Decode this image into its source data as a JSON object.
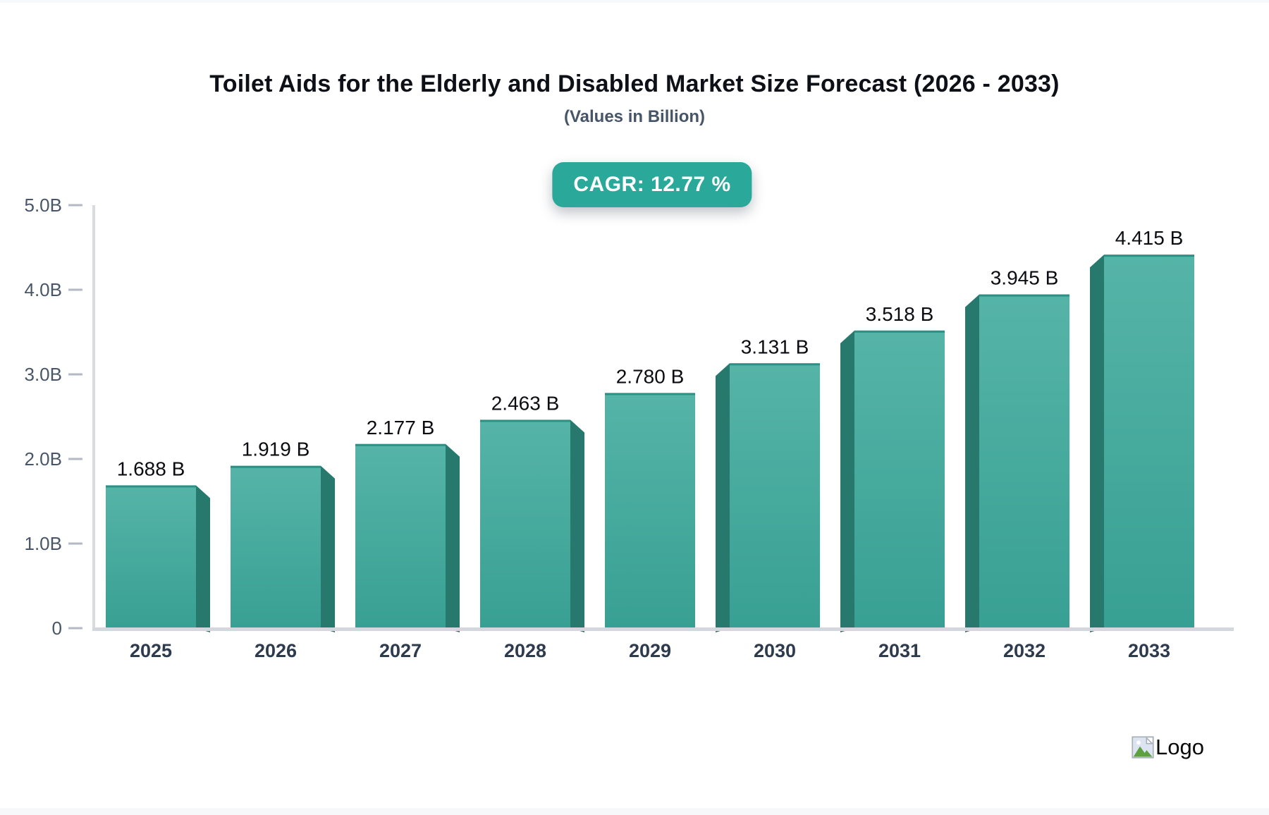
{
  "header": {
    "title": "Toilet Aids for the Elderly and Disabled Market Size Forecast (2026 - 2033)",
    "subtitle": "(Values in Billion)"
  },
  "badge": {
    "label": "CAGR: 12.77 %",
    "value_percent": 12.77,
    "background": "#2aa89a",
    "text_color": "#ffffff"
  },
  "chart_data": {
    "type": "bar",
    "title": "Toilet Aids for the Elderly and Disabled Market Size Forecast (2026 - 2033)",
    "subtitle": "(Values in Billion)",
    "categories": [
      "2025",
      "2026",
      "2027",
      "2028",
      "2029",
      "2030",
      "2031",
      "2032",
      "2033"
    ],
    "values": [
      1.688,
      1.919,
      2.177,
      2.463,
      2.78,
      3.131,
      3.518,
      3.945,
      4.415
    ],
    "value_labels": [
      "1.688 B",
      "1.919 B",
      "2.177 B",
      "2.463 B",
      "2.780 B",
      "3.131 B",
      "3.518 B",
      "3.945 B",
      "4.415 B"
    ],
    "unit": "Billion",
    "xlabel": "",
    "ylabel": "",
    "ylim": [
      0,
      5
    ],
    "ytick_labels": [
      "5.0B",
      "4.0B",
      "3.0B",
      "2.0B",
      "1.0B",
      "0"
    ],
    "grid": false,
    "legend": false,
    "style": "3d-perspective-bars",
    "colors": {
      "bar_face_top": "#55b4a7",
      "bar_face_bottom": "#38a093",
      "bar_side": "#27796e",
      "bar_top_edge": "#2d9084",
      "axis_line": "#d9dbe2",
      "tick_dash": "#b3bac4",
      "baseline": "#d4d7de",
      "ytick_label": "#49566a",
      "category_label": "#2e3b4f",
      "value_label": "#0b0d12"
    }
  },
  "footer": {
    "logo_text": "Logo"
  }
}
